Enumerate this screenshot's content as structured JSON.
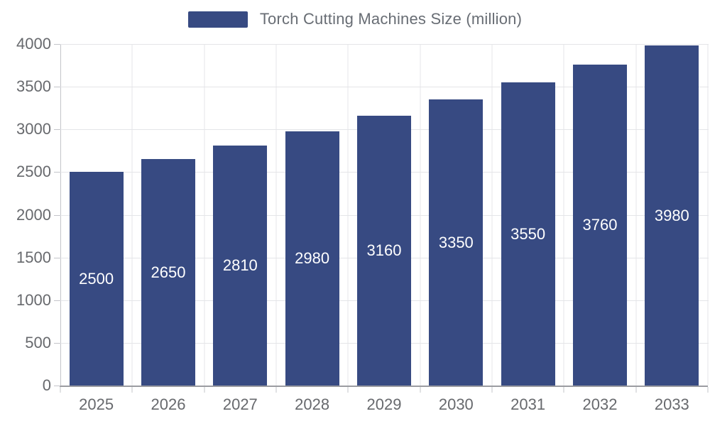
{
  "legend": {
    "label": "Torch Cutting Machines Size (million)"
  },
  "colors": {
    "bar": "#374a82",
    "grid": "#e4e5e8",
    "x_axis": "#9b9ca1",
    "y_axis": "#c3c4c9",
    "tick_label": "#67696d",
    "legend_text": "#686d74",
    "bar_value_label": "#ffffff",
    "background": "#ffffff"
  },
  "chart_data": {
    "type": "bar",
    "title": "Torch Cutting Machines Size (million)",
    "categories": [
      "2025",
      "2026",
      "2027",
      "2028",
      "2029",
      "2030",
      "2031",
      "2032",
      "2033"
    ],
    "values": [
      2500,
      2650,
      2810,
      2980,
      3160,
      3350,
      3550,
      3760,
      3980
    ],
    "xlabel": "",
    "ylabel": "",
    "ylim": [
      0,
      4000
    ],
    "ytick_step": 500,
    "grid": true,
    "legend_position": "top-center",
    "bar_labels": "inside-center",
    "bar_slot_fraction": 0.75
  }
}
